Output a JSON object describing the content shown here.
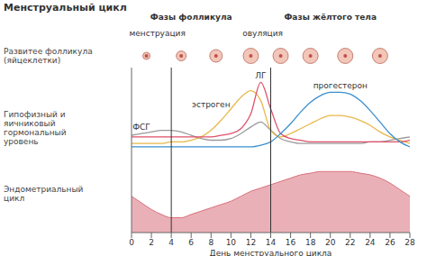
{
  "chart_data": {
    "type": "line",
    "title": "Менструальный цикл",
    "xlabel": "День менструального цикла",
    "x": [
      0,
      1,
      2,
      3,
      4,
      5,
      6,
      7,
      8,
      9,
      10,
      11,
      12,
      13,
      14,
      15,
      16,
      17,
      18,
      19,
      20,
      21,
      22,
      23,
      24,
      25,
      26,
      27,
      28
    ],
    "xlim": [
      0,
      28
    ],
    "xticks": [
      0,
      2,
      4,
      6,
      8,
      10,
      12,
      14,
      16,
      18,
      20,
      22,
      24,
      26,
      28
    ],
    "ylim": [
      0,
      100
    ],
    "tick_labels": "x",
    "series": [
      {
        "name": "ФСГ",
        "color": "#9a9a9a",
        "values": [
          59,
          60,
          61,
          62,
          62,
          61,
          59,
          57,
          56,
          56,
          57,
          60,
          64,
          67,
          62,
          57,
          55,
          54,
          54,
          54,
          54,
          54,
          54,
          54,
          55,
          55,
          56,
          57,
          58
        ]
      },
      {
        "name": "эстроген",
        "color": "#e8b84a",
        "values": [
          54,
          54,
          54,
          54,
          55,
          55,
          56,
          58,
          62,
          68,
          75,
          82,
          86,
          80,
          62,
          58,
          60,
          63,
          66,
          69,
          71,
          71,
          70,
          68,
          65,
          61,
          58,
          56,
          54
        ]
      },
      {
        "name": "ЛГ",
        "color": "#e0506a",
        "values": [
          58,
          58,
          58,
          58,
          58,
          58,
          58,
          58,
          58,
          59,
          60,
          63,
          72,
          91,
          75,
          60,
          57,
          56,
          55,
          55,
          55,
          55,
          55,
          55,
          55,
          55,
          55,
          55,
          56
        ]
      },
      {
        "name": "прогестерон",
        "color": "#3a8fd0",
        "values": [
          52,
          52,
          52,
          52,
          52,
          52,
          52,
          52,
          52,
          52,
          52,
          52,
          52,
          53,
          55,
          60,
          66,
          73,
          79,
          83,
          85,
          85,
          84,
          80,
          74,
          67,
          60,
          55,
          52
        ]
      },
      {
        "name": "Эндометриальный цикл",
        "type": "area",
        "color": "#d9707c",
        "values": [
          22,
          18,
          14,
          11,
          9,
          9,
          11,
          13,
          15,
          17,
          19,
          22,
          25,
          27,
          29,
          31,
          33,
          35,
          36,
          37,
          37,
          37,
          37,
          36,
          35,
          33,
          30,
          26,
          22
        ]
      }
    ],
    "phase_boundaries": [
      4,
      14
    ],
    "annotations": [
      {
        "text": "Фазы фолликула"
      },
      {
        "text": "Фазы жёлтого тела"
      },
      {
        "text": "менструация"
      },
      {
        "text": "овуляция"
      },
      {
        "text": "Развитее фолликула (яйцеклетки)"
      },
      {
        "text": "Гипофизный и яичниковый гормональный уровень"
      }
    ]
  }
}
